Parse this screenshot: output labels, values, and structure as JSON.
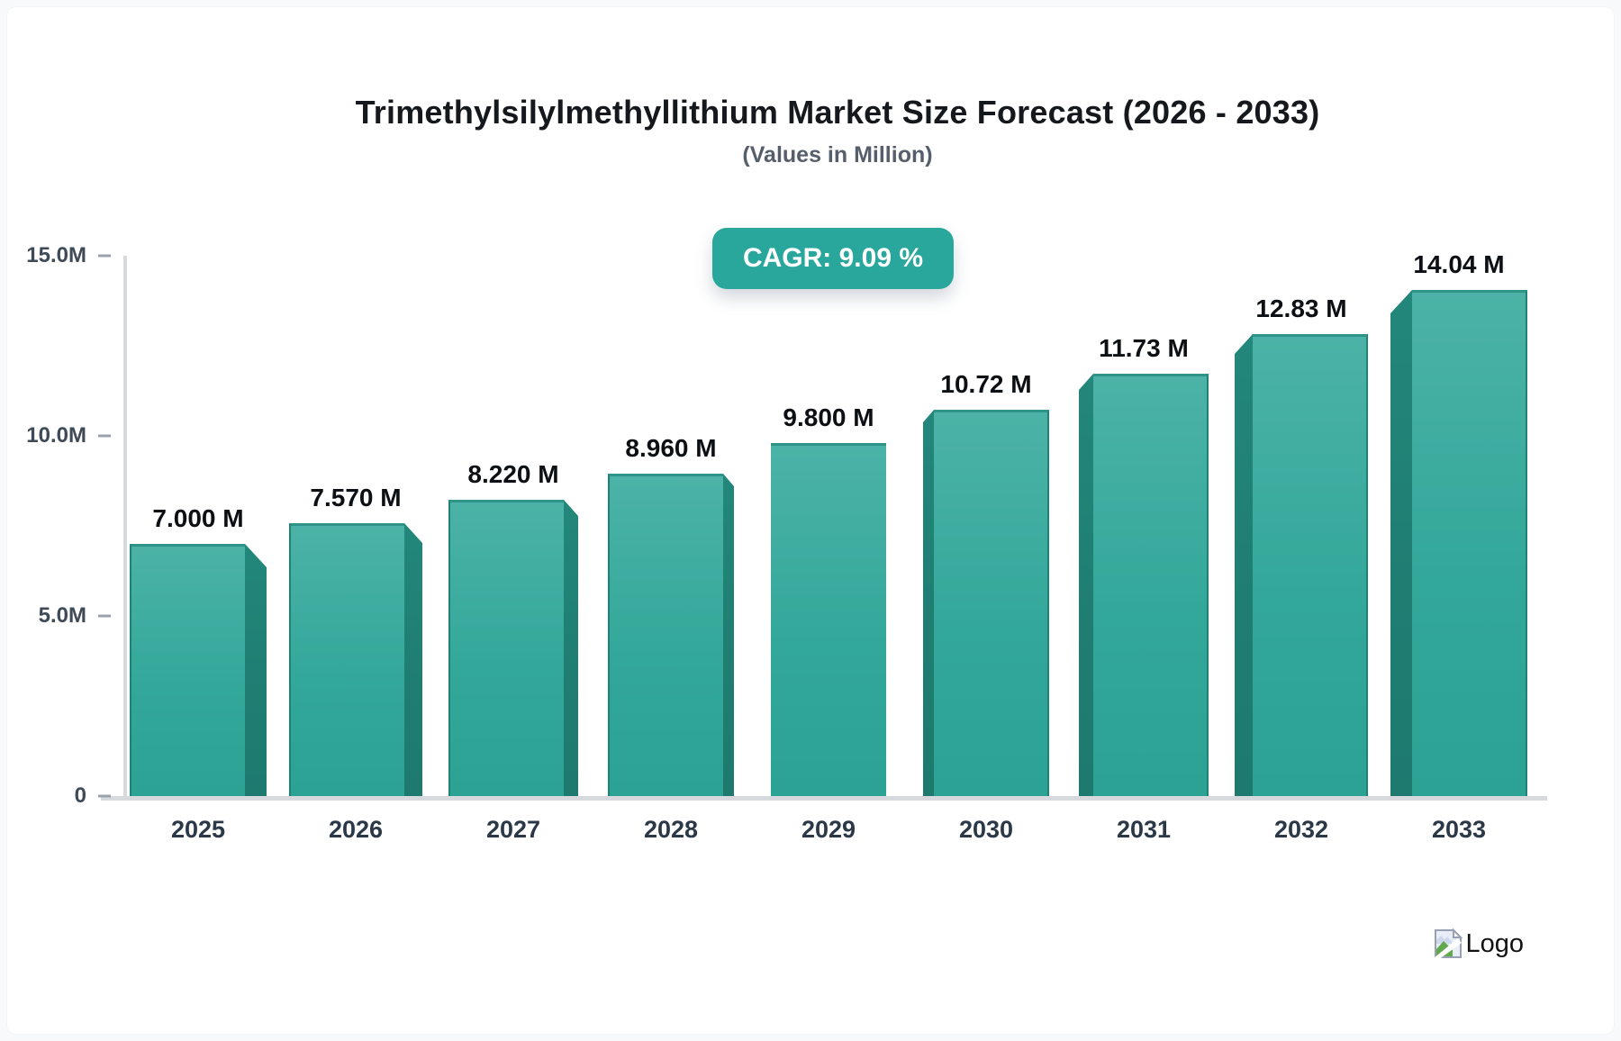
{
  "page": {
    "background": "#f7f9fa",
    "card_background": "#ffffff"
  },
  "header": {
    "title": "Trimethylsilylmethyllithium Market Size Forecast (2026 - 2033)",
    "subtitle": "(Values in Million)"
  },
  "badge": {
    "label": "CAGR: 9.09 %",
    "background": "#2aa79c",
    "text_color": "#ffffff"
  },
  "chart_data": {
    "type": "bar",
    "title": "Trimethylsilylmethyllithium Market Size Forecast (2026 - 2033)",
    "subtitle": "(Values in Million)",
    "categories": [
      "2025",
      "2026",
      "2027",
      "2028",
      "2029",
      "2030",
      "2031",
      "2032",
      "2033"
    ],
    "values": [
      7.0,
      7.57,
      8.22,
      8.96,
      9.8,
      10.72,
      11.73,
      12.83,
      14.04
    ],
    "value_labels": [
      "7.000 M",
      "7.570 M",
      "8.220 M",
      "8.960 M",
      "9.800 M",
      "10.72 M",
      "11.73 M",
      "12.83 M",
      "14.04 M"
    ],
    "unit": "Million",
    "ylim": [
      0,
      15
    ],
    "yticks": {
      "labels": [
        "15.0M",
        "10.0M",
        "5.0M",
        "0"
      ],
      "values": [
        15,
        10,
        5,
        0
      ]
    },
    "grid": false,
    "legend": "none",
    "annotation": "CAGR: 9.09 %",
    "bar_color_top": "#4cb2a7",
    "bar_color_bottom": "#2ba294",
    "bar_side_color": "#1f7d72",
    "bar_top_edge_color": "#2e9488",
    "axis_color": "#d6dade",
    "tick_color": "#9aa3ad"
  },
  "footer": {
    "logo_alt": "Logo"
  }
}
